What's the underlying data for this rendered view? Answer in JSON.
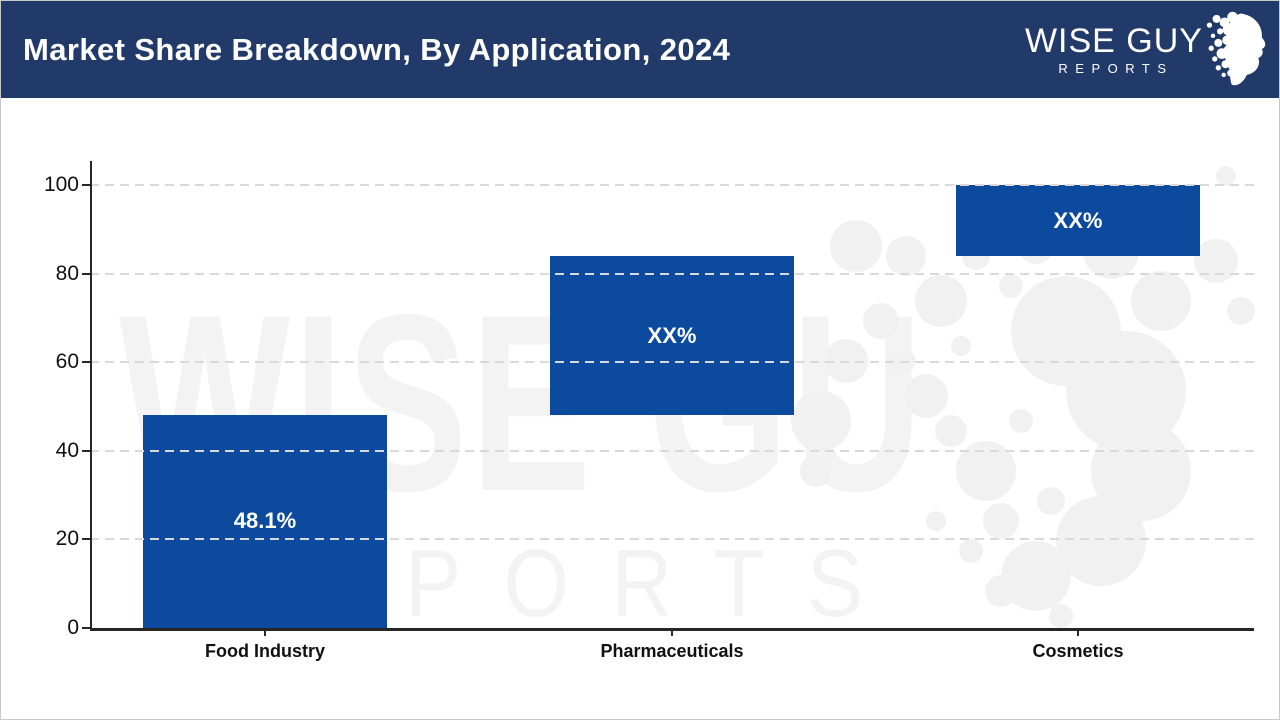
{
  "header": {
    "title": "Market Share Breakdown, By Application, 2024",
    "logo": {
      "line1": "WISE GUY",
      "line2": "REPORTS"
    }
  },
  "watermark": {
    "line1": "WISE GU",
    "line2": "REPORTS"
  },
  "colors": {
    "header_bg": "#223a69",
    "bar_blue": "#0c4a9e",
    "gridline": "#d9d9d9",
    "axis": "#262626",
    "watermark": "#f3f3f3"
  },
  "chart_data": {
    "type": "bar",
    "subtype": "waterfall-stacked",
    "title": "Market Share Breakdown, By Application, 2024",
    "xlabel": "",
    "ylabel": "",
    "categories": [
      "Food Industry",
      "Pharmaceuticals",
      "Cosmetics"
    ],
    "bars": [
      {
        "category": "Food Industry",
        "start": 0,
        "end": 48.1,
        "label": "48.1%"
      },
      {
        "category": "Pharmaceuticals",
        "start": 48.1,
        "end": 83.9,
        "label": "XX%"
      },
      {
        "category": "Cosmetics",
        "start": 83.9,
        "end": 100,
        "label": "XX%"
      }
    ],
    "yticks": [
      0,
      20,
      40,
      60,
      80,
      100
    ],
    "ylim": [
      0,
      105
    ],
    "grid": true,
    "gridline_style": "dashed",
    "legend": false,
    "bar_color": "#0c4a9e"
  }
}
